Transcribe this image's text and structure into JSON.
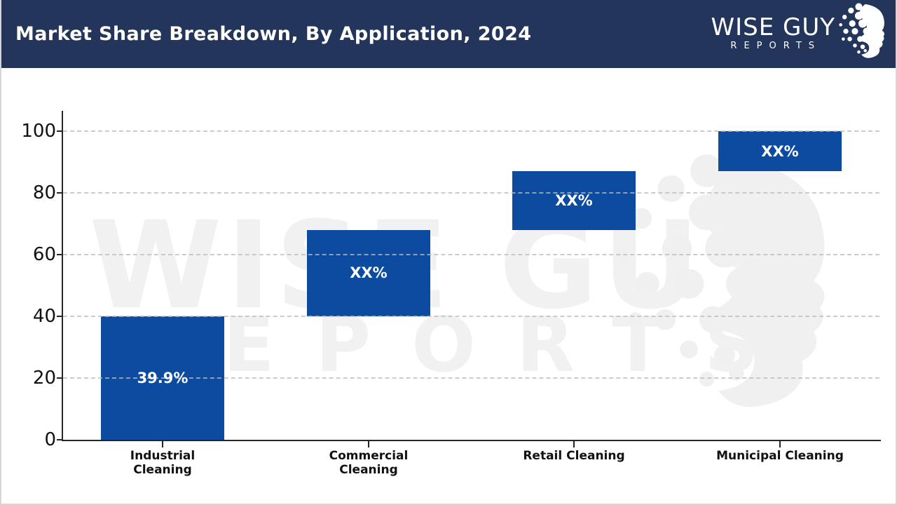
{
  "header": {
    "title": "Market Share Breakdown, By Application, 2024",
    "bg_color": "#23355a",
    "logo": {
      "line1": "WISE GUY",
      "line2": "REPORTS"
    }
  },
  "watermark": {
    "line1": "WISE GUY",
    "line2": "REPORTS"
  },
  "chart_data": {
    "type": "bar",
    "subtype": "waterfall",
    "title": "Market Share Breakdown, By Application, 2024",
    "categories": [
      "Industrial Cleaning",
      "Commercial Cleaning",
      "Retail Cleaning",
      "Municipal Cleaning"
    ],
    "category_lines": [
      [
        "Industrial",
        "Cleaning"
      ],
      [
        "Commercial",
        "Cleaning"
      ],
      [
        "Retail Cleaning"
      ],
      [
        "Municipal Cleaning"
      ]
    ],
    "segments": [
      {
        "category": "Industrial Cleaning",
        "start": 0,
        "end": 39.9,
        "label": "39.9%"
      },
      {
        "category": "Commercial Cleaning",
        "start": 40,
        "end": 68,
        "label": "XX%"
      },
      {
        "category": "Retail Cleaning",
        "start": 68,
        "end": 87,
        "label": "XX%"
      },
      {
        "category": "Municipal Cleaning",
        "start": 87,
        "end": 100,
        "label": "XX%"
      }
    ],
    "ylim": [
      0,
      100
    ],
    "yticks": [
      0,
      20,
      40,
      60,
      80,
      100
    ],
    "xlabel": "",
    "ylabel": "",
    "grid": "horizontal-dashed",
    "legend": "none",
    "bar_color": "#0c4ba0",
    "bar_label_color": "#ffffff",
    "axis_color": "#262626"
  }
}
